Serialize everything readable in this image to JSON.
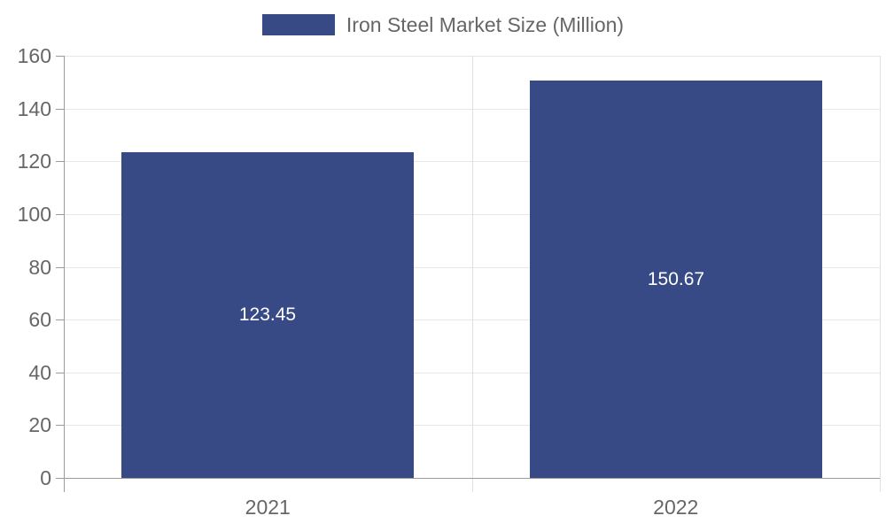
{
  "legend": {
    "label": "Iron Steel Market Size (Million)"
  },
  "chart_data": {
    "type": "bar",
    "title": "",
    "xlabel": "",
    "ylabel": "",
    "categories": [
      "2021",
      "2022"
    ],
    "series": [
      {
        "name": "Iron Steel Market Size (Million)",
        "values": [
          123.45,
          150.67
        ],
        "value_labels": [
          "123.45",
          "150.67"
        ]
      }
    ],
    "ylim": [
      0,
      160
    ],
    "yticks": [
      0,
      20,
      40,
      60,
      80,
      100,
      120,
      140,
      160
    ],
    "grid": true,
    "legend_position": "top",
    "bar_width_ratio": 0.717
  },
  "colors": {
    "bar": "#374a86",
    "grid": "#e6e6e6",
    "axis": "#9b9b9b",
    "boundary": "#e0e0e0",
    "text": "#666666",
    "value_label": "#ffffff",
    "background": "#ffffff"
  }
}
